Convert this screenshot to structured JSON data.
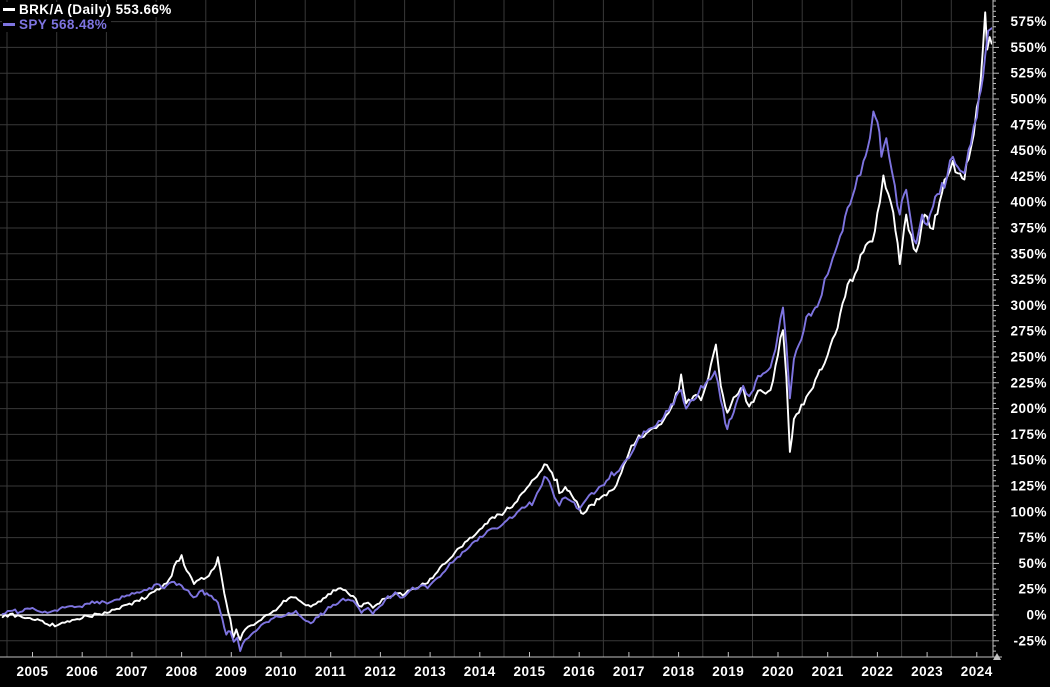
{
  "legend": {
    "items": [
      {
        "label": "BRK/A (Daily) 553.66%",
        "color": "#ffffff"
      },
      {
        "label": "SPY 568.48%",
        "color": "#7e74e0"
      }
    ]
  },
  "colors": {
    "background": "#000000",
    "grid": "#383838",
    "zero_line": "#e0e0e0",
    "axis": "#c0c0c0",
    "axis_text": "#ffffff",
    "brk_line": "#ffffff",
    "spy_line": "#7e74e0"
  },
  "chart_data": {
    "type": "line",
    "title": "",
    "xlabel": "",
    "ylabel": "",
    "x_tick_labels": [
      "2005",
      "2006",
      "2007",
      "2008",
      "2009",
      "2010",
      "2011",
      "2012",
      "2013",
      "2014",
      "2015",
      "2016",
      "2017",
      "2018",
      "2019",
      "2020",
      "2021",
      "2022",
      "2023",
      "2024"
    ],
    "y_tick_labels": [
      "575%",
      "550%",
      "525%",
      "500%",
      "475%",
      "450%",
      "425%",
      "400%",
      "375%",
      "350%",
      "325%",
      "300%",
      "275%",
      "250%",
      "225%",
      "200%",
      "175%",
      "150%",
      "125%",
      "100%",
      "75%",
      "50%",
      "25%",
      "0%",
      "-25%"
    ],
    "y_unit": "%",
    "ylim": [
      -25,
      575
    ],
    "y_step": 25,
    "x_range_years": [
      2004.4,
      2024.3
    ],
    "grid": true,
    "legend_position": "top-left",
    "zero_line": 0,
    "series": [
      {
        "name": "BRK/A (Daily)",
        "final_value_pct": 553.66,
        "color": "#ffffff",
        "points": [
          [
            2004.4,
            -2
          ],
          [
            2004.55,
            1
          ],
          [
            2004.75,
            -1
          ],
          [
            2004.95,
            -3
          ],
          [
            2005.1,
            -4
          ],
          [
            2005.3,
            -9
          ],
          [
            2005.5,
            -10
          ],
          [
            2005.7,
            -6
          ],
          [
            2005.9,
            -4
          ],
          [
            2006.1,
            -1
          ],
          [
            2006.3,
            1
          ],
          [
            2006.5,
            2
          ],
          [
            2006.7,
            6
          ],
          [
            2006.9,
            10
          ],
          [
            2007.1,
            14
          ],
          [
            2007.3,
            17
          ],
          [
            2007.5,
            25
          ],
          [
            2007.65,
            30
          ],
          [
            2007.8,
            38
          ],
          [
            2007.9,
            52
          ],
          [
            2008.0,
            58
          ],
          [
            2008.1,
            43
          ],
          [
            2008.25,
            30
          ],
          [
            2008.4,
            36
          ],
          [
            2008.55,
            38
          ],
          [
            2008.65,
            45
          ],
          [
            2008.73,
            56
          ],
          [
            2008.82,
            32
          ],
          [
            2008.9,
            12
          ],
          [
            2008.98,
            -4
          ],
          [
            2009.04,
            -22
          ],
          [
            2009.1,
            -14
          ],
          [
            2009.18,
            -24
          ],
          [
            2009.28,
            -14
          ],
          [
            2009.4,
            -10
          ],
          [
            2009.55,
            -6
          ],
          [
            2009.7,
            0
          ],
          [
            2009.85,
            4
          ],
          [
            2010.0,
            10
          ],
          [
            2010.15,
            16
          ],
          [
            2010.3,
            17
          ],
          [
            2010.45,
            11
          ],
          [
            2010.6,
            8
          ],
          [
            2010.75,
            13
          ],
          [
            2010.9,
            17
          ],
          [
            2011.05,
            24
          ],
          [
            2011.2,
            26
          ],
          [
            2011.35,
            21
          ],
          [
            2011.5,
            16
          ],
          [
            2011.62,
            8
          ],
          [
            2011.75,
            12
          ],
          [
            2011.85,
            7
          ],
          [
            2011.98,
            11
          ],
          [
            2012.1,
            16
          ],
          [
            2012.3,
            21
          ],
          [
            2012.45,
            19
          ],
          [
            2012.6,
            24
          ],
          [
            2012.8,
            28
          ],
          [
            2012.95,
            31
          ],
          [
            2013.15,
            42
          ],
          [
            2013.35,
            52
          ],
          [
            2013.55,
            64
          ],
          [
            2013.75,
            72
          ],
          [
            2013.95,
            80
          ],
          [
            2014.1,
            88
          ],
          [
            2014.3,
            94
          ],
          [
            2014.5,
            100
          ],
          [
            2014.7,
            108
          ],
          [
            2014.9,
            120
          ],
          [
            2015.1,
            132
          ],
          [
            2015.3,
            146
          ],
          [
            2015.45,
            138
          ],
          [
            2015.6,
            118
          ],
          [
            2015.72,
            124
          ],
          [
            2015.85,
            116
          ],
          [
            2016.0,
            104
          ],
          [
            2016.08,
            98
          ],
          [
            2016.2,
            106
          ],
          [
            2016.4,
            112
          ],
          [
            2016.6,
            120
          ],
          [
            2016.75,
            126
          ],
          [
            2016.85,
            138
          ],
          [
            2017.0,
            157
          ],
          [
            2017.2,
            174
          ],
          [
            2017.4,
            178
          ],
          [
            2017.6,
            184
          ],
          [
            2017.8,
            196
          ],
          [
            2017.95,
            215
          ],
          [
            2018.05,
            233
          ],
          [
            2018.15,
            205
          ],
          [
            2018.3,
            212
          ],
          [
            2018.45,
            208
          ],
          [
            2018.6,
            230
          ],
          [
            2018.75,
            262
          ],
          [
            2018.85,
            222
          ],
          [
            2018.98,
            196
          ],
          [
            2019.15,
            212
          ],
          [
            2019.3,
            220
          ],
          [
            2019.42,
            202
          ],
          [
            2019.55,
            212
          ],
          [
            2019.7,
            216
          ],
          [
            2019.85,
            218
          ],
          [
            2020.0,
            252
          ],
          [
            2020.1,
            276
          ],
          [
            2020.17,
            230
          ],
          [
            2020.24,
            158
          ],
          [
            2020.32,
            190
          ],
          [
            2020.42,
            196
          ],
          [
            2020.52,
            204
          ],
          [
            2020.62,
            215
          ],
          [
            2020.75,
            228
          ],
          [
            2020.88,
            238
          ],
          [
            2021.0,
            252
          ],
          [
            2021.15,
            272
          ],
          [
            2021.3,
            302
          ],
          [
            2021.45,
            325
          ],
          [
            2021.6,
            335
          ],
          [
            2021.72,
            352
          ],
          [
            2021.85,
            362
          ],
          [
            2021.95,
            372
          ],
          [
            2022.05,
            400
          ],
          [
            2022.12,
            426
          ],
          [
            2022.22,
            408
          ],
          [
            2022.32,
            390
          ],
          [
            2022.45,
            340
          ],
          [
            2022.58,
            388
          ],
          [
            2022.68,
            368
          ],
          [
            2022.78,
            352
          ],
          [
            2022.9,
            380
          ],
          [
            2023.0,
            386
          ],
          [
            2023.12,
            374
          ],
          [
            2023.25,
            400
          ],
          [
            2023.4,
            424
          ],
          [
            2023.52,
            440
          ],
          [
            2023.62,
            428
          ],
          [
            2023.75,
            422
          ],
          [
            2023.88,
            452
          ],
          [
            2024.0,
            492
          ],
          [
            2024.08,
            520
          ],
          [
            2024.17,
            584
          ],
          [
            2024.21,
            548
          ],
          [
            2024.26,
            560
          ],
          [
            2024.3,
            553.66
          ]
        ]
      },
      {
        "name": "SPY",
        "final_value_pct": 568.48,
        "color": "#7e74e0",
        "points": [
          [
            2004.4,
            1
          ],
          [
            2004.55,
            4
          ],
          [
            2004.75,
            3
          ],
          [
            2004.95,
            6
          ],
          [
            2005.1,
            4
          ],
          [
            2005.3,
            2
          ],
          [
            2005.5,
            4
          ],
          [
            2005.7,
            8
          ],
          [
            2005.9,
            8
          ],
          [
            2006.1,
            11
          ],
          [
            2006.3,
            13
          ],
          [
            2006.5,
            11
          ],
          [
            2006.7,
            15
          ],
          [
            2006.9,
            19
          ],
          [
            2007.1,
            22
          ],
          [
            2007.3,
            24
          ],
          [
            2007.5,
            30
          ],
          [
            2007.65,
            26
          ],
          [
            2007.8,
            32
          ],
          [
            2007.95,
            30
          ],
          [
            2008.05,
            25
          ],
          [
            2008.18,
            20
          ],
          [
            2008.3,
            18
          ],
          [
            2008.42,
            24
          ],
          [
            2008.55,
            19
          ],
          [
            2008.65,
            15
          ],
          [
            2008.73,
            12
          ],
          [
            2008.82,
            -4
          ],
          [
            2008.9,
            -19
          ],
          [
            2008.98,
            -16
          ],
          [
            2009.05,
            -26
          ],
          [
            2009.12,
            -22
          ],
          [
            2009.18,
            -35
          ],
          [
            2009.28,
            -24
          ],
          [
            2009.4,
            -19
          ],
          [
            2009.55,
            -13
          ],
          [
            2009.7,
            -7
          ],
          [
            2009.85,
            -3
          ],
          [
            2010.0,
            -2
          ],
          [
            2010.15,
            2
          ],
          [
            2010.3,
            4
          ],
          [
            2010.45,
            -4
          ],
          [
            2010.6,
            -8
          ],
          [
            2010.75,
            -2
          ],
          [
            2010.9,
            4
          ],
          [
            2011.05,
            10
          ],
          [
            2011.2,
            14
          ],
          [
            2011.35,
            15
          ],
          [
            2011.5,
            11
          ],
          [
            2011.62,
            2
          ],
          [
            2011.75,
            7
          ],
          [
            2011.85,
            1
          ],
          [
            2011.98,
            8
          ],
          [
            2012.1,
            15
          ],
          [
            2012.3,
            22
          ],
          [
            2012.45,
            17
          ],
          [
            2012.6,
            24
          ],
          [
            2012.8,
            28
          ],
          [
            2012.95,
            26
          ],
          [
            2013.15,
            36
          ],
          [
            2013.35,
            46
          ],
          [
            2013.55,
            56
          ],
          [
            2013.75,
            64
          ],
          [
            2013.95,
            72
          ],
          [
            2014.1,
            78
          ],
          [
            2014.3,
            84
          ],
          [
            2014.5,
            90
          ],
          [
            2014.7,
            96
          ],
          [
            2014.9,
            104
          ],
          [
            2015.1,
            112
          ],
          [
            2015.3,
            134
          ],
          [
            2015.45,
            122
          ],
          [
            2015.6,
            106
          ],
          [
            2015.72,
            114
          ],
          [
            2015.85,
            110
          ],
          [
            2016.0,
            102
          ],
          [
            2016.08,
            108
          ],
          [
            2016.2,
            116
          ],
          [
            2016.4,
            124
          ],
          [
            2016.6,
            132
          ],
          [
            2016.75,
            138
          ],
          [
            2016.85,
            144
          ],
          [
            2017.0,
            152
          ],
          [
            2017.2,
            172
          ],
          [
            2017.4,
            180
          ],
          [
            2017.6,
            188
          ],
          [
            2017.8,
            198
          ],
          [
            2017.95,
            212
          ],
          [
            2018.05,
            218
          ],
          [
            2018.15,
            200
          ],
          [
            2018.3,
            208
          ],
          [
            2018.45,
            222
          ],
          [
            2018.6,
            228
          ],
          [
            2018.73,
            236
          ],
          [
            2018.85,
            208
          ],
          [
            2018.98,
            180
          ],
          [
            2019.15,
            204
          ],
          [
            2019.3,
            222
          ],
          [
            2019.42,
            212
          ],
          [
            2019.55,
            226
          ],
          [
            2019.7,
            234
          ],
          [
            2019.85,
            240
          ],
          [
            2020.0,
            272
          ],
          [
            2020.1,
            298
          ],
          [
            2020.17,
            262
          ],
          [
            2020.24,
            210
          ],
          [
            2020.32,
            248
          ],
          [
            2020.42,
            262
          ],
          [
            2020.52,
            276
          ],
          [
            2020.62,
            292
          ],
          [
            2020.75,
            298
          ],
          [
            2020.88,
            310
          ],
          [
            2021.0,
            330
          ],
          [
            2021.15,
            352
          ],
          [
            2021.3,
            372
          ],
          [
            2021.45,
            398
          ],
          [
            2021.6,
            425
          ],
          [
            2021.72,
            440
          ],
          [
            2021.85,
            462
          ],
          [
            2021.92,
            488
          ],
          [
            2022.0,
            478
          ],
          [
            2022.08,
            444
          ],
          [
            2022.18,
            462
          ],
          [
            2022.3,
            428
          ],
          [
            2022.45,
            388
          ],
          [
            2022.58,
            412
          ],
          [
            2022.68,
            380
          ],
          [
            2022.78,
            360
          ],
          [
            2022.9,
            388
          ],
          [
            2023.0,
            378
          ],
          [
            2023.12,
            396
          ],
          [
            2023.25,
            408
          ],
          [
            2023.4,
            424
          ],
          [
            2023.52,
            444
          ],
          [
            2023.62,
            434
          ],
          [
            2023.75,
            428
          ],
          [
            2023.88,
            456
          ],
          [
            2024.0,
            482
          ],
          [
            2024.08,
            508
          ],
          [
            2024.17,
            542
          ],
          [
            2024.23,
            566
          ],
          [
            2024.3,
            568.48
          ]
        ]
      }
    ]
  }
}
